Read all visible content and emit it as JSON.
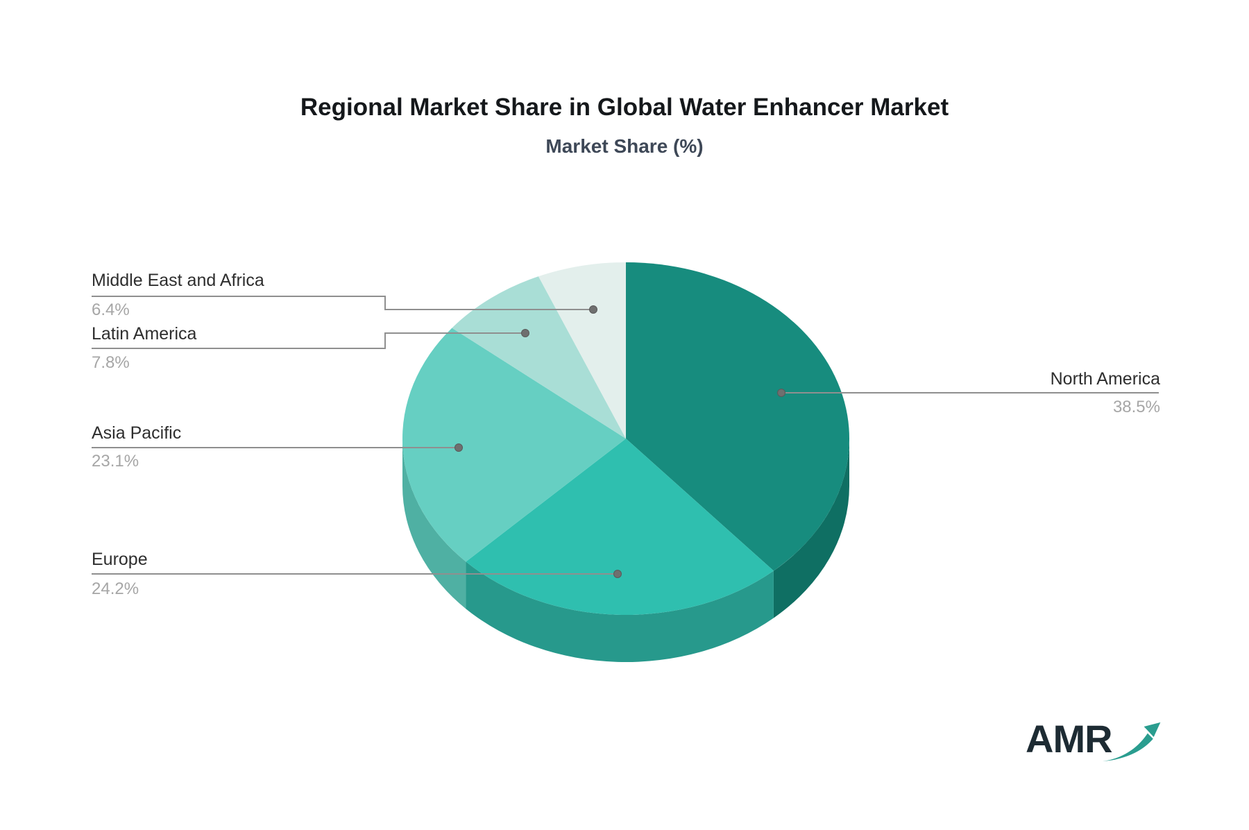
{
  "title": "Regional Market Share in Global Water Enhancer Market",
  "subtitle": "Market Share (%)",
  "callouts": [
    {
      "region": "Middle East and Africa",
      "share": "6.4%"
    },
    {
      "region": "Latin America",
      "share": "7.8%"
    },
    {
      "region": "Asia Pacific",
      "share": "23.1%"
    },
    {
      "region": "Europe",
      "share": "24.2%"
    },
    {
      "region": "North America",
      "share": "38.5%"
    }
  ],
  "logo": {
    "text": "AMR",
    "text_color": "#1D2B33",
    "arrow_color": "#2A9D8F"
  },
  "chart_data": {
    "type": "pie",
    "title": "Regional Market Share in Global Water Enhancer Market",
    "subtitle": "Market Share (%)",
    "unit": "%",
    "labels": [
      "North America",
      "Europe",
      "Asia Pacific",
      "Latin America",
      "Middle East and Africa"
    ],
    "values": [
      38.5,
      24.2,
      23.1,
      7.8,
      6.4
    ],
    "colors": [
      "#178C7E",
      "#2FBFAF",
      "#66CFC2",
      "#A9DED6",
      "#E3EFEC"
    ],
    "side_colors": [
      "#0F6F63",
      "#27998C",
      "#4FB0A3",
      "#8BC4BB",
      "#C9DFDA"
    ],
    "effect": "3d",
    "start_angle_deg": 0,
    "direction": "clockwise",
    "legend_position": "callout-labels",
    "callout_line_color": "#8F8F8F",
    "callout_dot_color": "#6F6F6F"
  }
}
